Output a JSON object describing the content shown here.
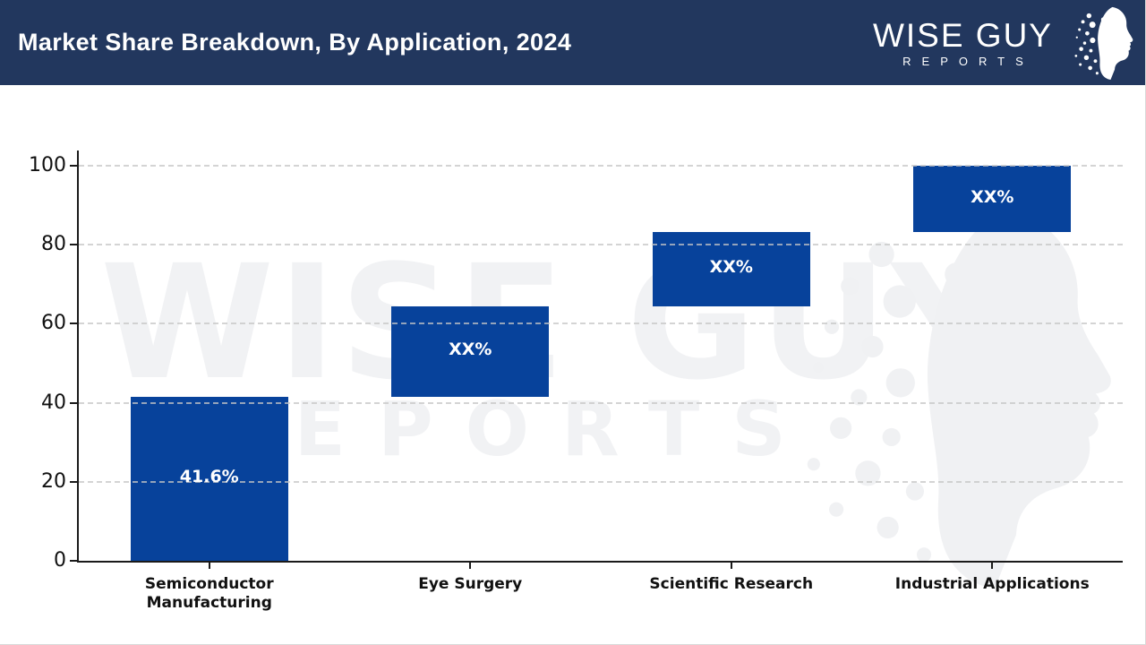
{
  "header": {
    "title": "Market Share Breakdown, By Application, 2024",
    "logo": {
      "wordmark": "WISE GUY",
      "subtext": "REPORTS"
    }
  },
  "watermark": {
    "line1": "WISE GUY",
    "line2": "REPORTS"
  },
  "chart_data": {
    "type": "bar",
    "subtype": "waterfall",
    "title": "Market Share Breakdown, By Application, 2024",
    "categories": [
      "Semiconductor Manufacturing",
      "Eye Surgery",
      "Scientific Research",
      "Industrial Applications"
    ],
    "segments": [
      {
        "category": "Semiconductor Manufacturing",
        "start": 0,
        "end": 41.6,
        "label": "41.6%"
      },
      {
        "category": "Eye Surgery",
        "start": 41.6,
        "end": 64.4,
        "label": "XX%"
      },
      {
        "category": "Scientific Research",
        "start": 64.4,
        "end": 83.3,
        "label": "XX%"
      },
      {
        "category": "Industrial Applications",
        "start": 83.3,
        "end": 100,
        "label": "XX%"
      }
    ],
    "ylim": [
      0,
      100
    ],
    "yticks": [
      0,
      20,
      40,
      60,
      80,
      100
    ],
    "xlabel": "",
    "ylabel": "",
    "grid": "horizontal-dashed",
    "legend_position": "none",
    "colors": {
      "bar": "#07429B",
      "bar_label": "#FFFFFF",
      "header_bg": "#22375E",
      "header_text": "#FFFFFF",
      "grid": "#C8C8C8",
      "axis": "#1A1A1A",
      "watermark": "#F1F2F4"
    }
  }
}
